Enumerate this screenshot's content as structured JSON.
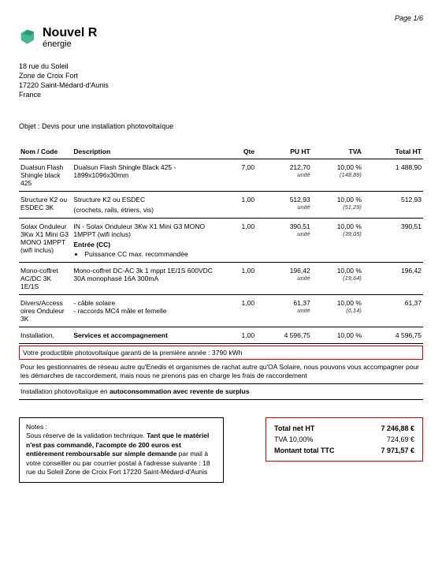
{
  "page_number": "Page 1/6",
  "logo": {
    "line1": "Nouvel R",
    "line2": "énergie",
    "icon_color": "#3fb98f"
  },
  "address": {
    "line1": "18 rue du Soleil",
    "line2": "Zone de Croix Fort",
    "line3": "17220 Saint-Médard-d'Aunis",
    "line4": "France"
  },
  "subject": "Objet : Devis pour une installation photovoltaïque",
  "table": {
    "headers": {
      "name": "Nom / Code",
      "desc": "Description",
      "qte": "Qte",
      "puht": "PU HT",
      "tva": "TVA",
      "totalht": "Total HT"
    },
    "rows": [
      {
        "name": "Dualsun Flash Shingle black 425",
        "desc": "Dualsun Flash Shingle Black 425 - 1899x1096x30mm",
        "qte": "7,00",
        "pu": "212,70",
        "pu_unit": "unité",
        "tva": "10,00 %",
        "tva_sub": "(148,89)",
        "total": "1 488,90"
      },
      {
        "name": "Structure K2 ou ESDEC 3K",
        "desc": "Structure K2 ou ESDEC",
        "desc_sub": "(crochets, rails, étriers, vis)",
        "qte": "1,00",
        "pu": "512,93",
        "pu_unit": "unité",
        "tva": "10,00 %",
        "tva_sub": "(51,29)",
        "total": "512,93"
      },
      {
        "name": "Solax Onduleur 3Kw X1 Mini G3 MONO 1MPPT (wifi inclus)",
        "desc": "IN - Solax Onduleur 3Kw X1 Mini G3 MONO 1MPPT (wifi inclus)",
        "desc_bold": "Entrée (CC)",
        "desc_bullet": "Puissance CC max. recommandée",
        "qte": "1,00",
        "pu": "390,51",
        "pu_unit": "unité",
        "tva": "10,00 %",
        "tva_sub": "(39,05)",
        "total": "390,51"
      },
      {
        "name": "Mono-coffret AC/DC 3K 1E/1S",
        "desc": "Mono-coffret DC-AC 3k 1 mppt 1E/1S 600VDC 30A monophasé 16A 300mA",
        "qte": "1,00",
        "pu": "196,42",
        "pu_unit": "unité",
        "tva": "10,00 %",
        "tva_sub": "(19,64)",
        "total": "196,42"
      },
      {
        "name": "Divers/Access oires Onduleur 3K",
        "desc": "- câble solaire\n- raccords MC4 mâle et femelle",
        "qte": "1,00",
        "pu": "61,37",
        "pu_unit": "unité",
        "tva": "10,00 %",
        "tva_sub": "(6,14)",
        "total": "61,37"
      },
      {
        "name": "Installation,",
        "desc_boldonly": "Services et accompagnement",
        "qte": "1,00",
        "pu": "4 596,75",
        "tva": "10,00 %",
        "total": "4 596,75"
      }
    ]
  },
  "guarantee": "Votre productible photovoltaïque garanti de la première année : 3790 kWh",
  "info1": "Pour les gestionnaires de réseau autre qu'Enedis et organismes de rachat autre qu'OA Solaire, nous pouvons vous accompagner pour les démarches de raccordement, mais nous ne prenons pas en charge les frais de raccordement",
  "info2_pre": "Installation photovoltaïque en ",
  "info2_bold": "autoconsommation avec revente de surplus",
  "notes": {
    "title": "Notes :",
    "pre": "Sous réserve de la validation technique. ",
    "bold": "Tant que le matériel n'est pas commandé, l'acompte de 200 euros est entièrement remboursable sur simple demande",
    "post": " par mail à votre conseiller ou par courrier postal à l'adresse suivante : 18 rue du Soleil Zone de Croix Fort 17220 Saint-Médard-d'Aunis"
  },
  "totals": {
    "net_ht_lbl": "Total net HT",
    "net_ht": "7 246,88 €",
    "tva_lbl": "TVA 10,00%",
    "tva": "724,69 €",
    "ttc_lbl": "Montant total TTC",
    "ttc": "7 971,57 €"
  },
  "colors": {
    "highlight_border": "#d40000"
  }
}
